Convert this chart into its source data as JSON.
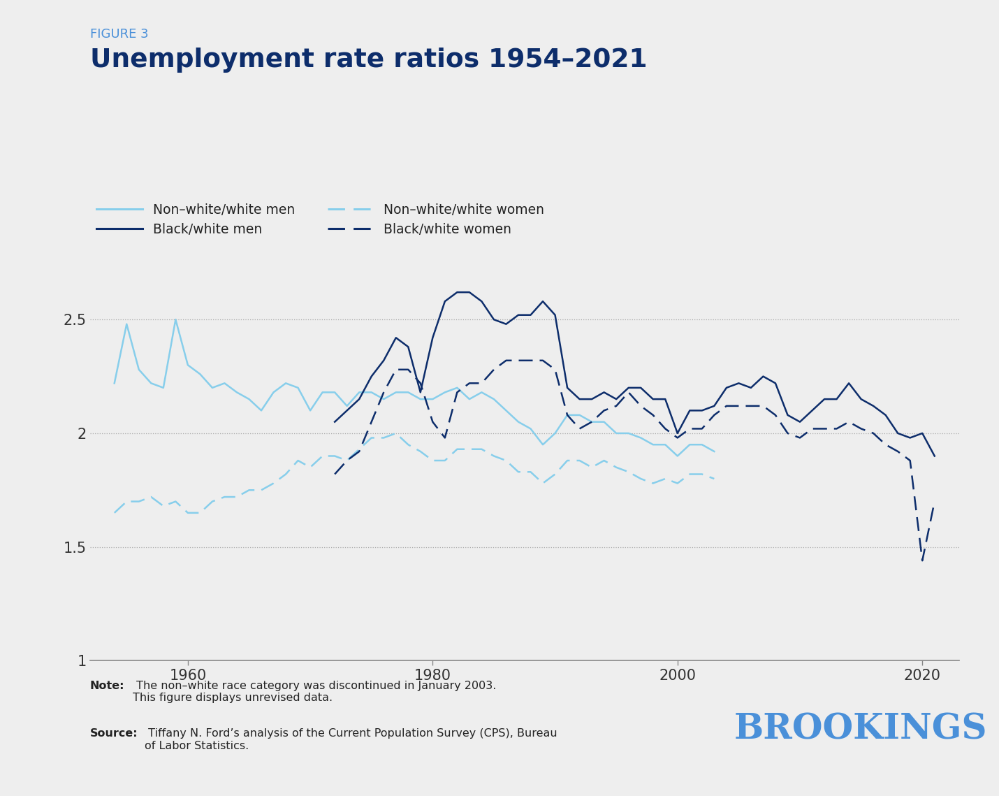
{
  "figure_label": "FIGURE 3",
  "title": "Unemployment rate ratios 1954–2021",
  "background_color": "#eeeeee",
  "figure_label_color": "#4a90d9",
  "title_color": "#0d2d6b",
  "light_blue": "#87CEEB",
  "dark_navy": "#0d2d6b",
  "note_bold": "Note:",
  "note_rest": " The non–white race category was discontinued in January 2003.\nThis figure displays unrevised data.",
  "source_bold": "Source:",
  "source_rest": " Tiffany N. Ford’s analysis of the Current Population Survey (CPS), Bureau\nof Labor Statistics.",
  "brookings_color": "#4a90d9",
  "ylim": [
    1.0,
    2.75
  ],
  "yticks": [
    1.0,
    1.5,
    2.0,
    2.5
  ],
  "xticks": [
    1960,
    1980,
    2000,
    2020
  ],
  "bottom_bar_color": "#2e7d32",
  "non_white_men_years": [
    1954,
    1955,
    1956,
    1957,
    1958,
    1959,
    1960,
    1961,
    1962,
    1963,
    1964,
    1965,
    1966,
    1967,
    1968,
    1969,
    1970,
    1971,
    1972,
    1973,
    1974,
    1975,
    1976,
    1977,
    1978,
    1979,
    1980,
    1981,
    1982,
    1983,
    1984,
    1985,
    1986,
    1987,
    1988,
    1989,
    1990,
    1991,
    1992,
    1993,
    1994,
    1995,
    1996,
    1997,
    1998,
    1999,
    2000,
    2001,
    2002,
    2003
  ],
  "non_white_men_vals": [
    2.22,
    2.48,
    2.28,
    2.22,
    2.2,
    2.5,
    2.3,
    2.26,
    2.2,
    2.22,
    2.18,
    2.15,
    2.1,
    2.18,
    2.22,
    2.2,
    2.1,
    2.18,
    2.18,
    2.12,
    2.18,
    2.18,
    2.15,
    2.18,
    2.18,
    2.15,
    2.15,
    2.18,
    2.2,
    2.15,
    2.18,
    2.15,
    2.1,
    2.05,
    2.02,
    1.95,
    2.0,
    2.08,
    2.08,
    2.05,
    2.05,
    2.0,
    2.0,
    1.98,
    1.95,
    1.95,
    1.9,
    1.95,
    1.95,
    1.92
  ],
  "non_white_women_years": [
    1954,
    1955,
    1956,
    1957,
    1958,
    1959,
    1960,
    1961,
    1962,
    1963,
    1964,
    1965,
    1966,
    1967,
    1968,
    1969,
    1970,
    1971,
    1972,
    1973,
    1974,
    1975,
    1976,
    1977,
    1978,
    1979,
    1980,
    1981,
    1982,
    1983,
    1984,
    1985,
    1986,
    1987,
    1988,
    1989,
    1990,
    1991,
    1992,
    1993,
    1994,
    1995,
    1996,
    1997,
    1998,
    1999,
    2000,
    2001,
    2002,
    2003
  ],
  "non_white_women_vals": [
    1.65,
    1.7,
    1.7,
    1.72,
    1.68,
    1.7,
    1.65,
    1.65,
    1.7,
    1.72,
    1.72,
    1.75,
    1.75,
    1.78,
    1.82,
    1.88,
    1.85,
    1.9,
    1.9,
    1.88,
    1.93,
    1.98,
    1.98,
    2.0,
    1.95,
    1.92,
    1.88,
    1.88,
    1.93,
    1.93,
    1.93,
    1.9,
    1.88,
    1.83,
    1.83,
    1.78,
    1.82,
    1.88,
    1.88,
    1.85,
    1.88,
    1.85,
    1.83,
    1.8,
    1.78,
    1.8,
    1.78,
    1.82,
    1.82,
    1.8
  ],
  "black_men_years": [
    1972,
    1973,
    1974,
    1975,
    1976,
    1977,
    1978,
    1979,
    1980,
    1981,
    1982,
    1983,
    1984,
    1985,
    1986,
    1987,
    1988,
    1989,
    1990,
    1991,
    1992,
    1993,
    1994,
    1995,
    1996,
    1997,
    1998,
    1999,
    2000,
    2001,
    2002,
    2003,
    2004,
    2005,
    2006,
    2007,
    2008,
    2009,
    2010,
    2011,
    2012,
    2013,
    2014,
    2015,
    2016,
    2017,
    2018,
    2019,
    2020,
    2021
  ],
  "black_men_vals": [
    2.05,
    2.1,
    2.15,
    2.25,
    2.32,
    2.42,
    2.38,
    2.18,
    2.42,
    2.58,
    2.62,
    2.62,
    2.58,
    2.5,
    2.48,
    2.52,
    2.52,
    2.58,
    2.52,
    2.2,
    2.15,
    2.15,
    2.18,
    2.15,
    2.2,
    2.2,
    2.15,
    2.15,
    2.0,
    2.1,
    2.1,
    2.12,
    2.2,
    2.22,
    2.2,
    2.25,
    2.22,
    2.08,
    2.05,
    2.1,
    2.15,
    2.15,
    2.22,
    2.15,
    2.12,
    2.08,
    2.0,
    1.98,
    2.0,
    1.9
  ],
  "black_women_years": [
    1972,
    1973,
    1974,
    1975,
    1976,
    1977,
    1978,
    1979,
    1980,
    1981,
    1982,
    1983,
    1984,
    1985,
    1986,
    1987,
    1988,
    1989,
    1990,
    1991,
    1992,
    1993,
    1994,
    1995,
    1996,
    1997,
    1998,
    1999,
    2000,
    2001,
    2002,
    2003,
    2004,
    2005,
    2006,
    2007,
    2008,
    2009,
    2010,
    2011,
    2012,
    2013,
    2014,
    2015,
    2016,
    2017,
    2018,
    2019,
    2020,
    2021
  ],
  "black_women_vals": [
    1.82,
    1.88,
    1.92,
    2.05,
    2.18,
    2.28,
    2.28,
    2.22,
    2.05,
    1.98,
    2.18,
    2.22,
    2.22,
    2.28,
    2.32,
    2.32,
    2.32,
    2.32,
    2.28,
    2.08,
    2.02,
    2.05,
    2.1,
    2.12,
    2.18,
    2.12,
    2.08,
    2.02,
    1.98,
    2.02,
    2.02,
    2.08,
    2.12,
    2.12,
    2.12,
    2.12,
    2.08,
    2.0,
    1.98,
    2.02,
    2.02,
    2.02,
    2.05,
    2.02,
    2.0,
    1.95,
    1.92,
    1.88,
    1.44,
    1.7
  ]
}
